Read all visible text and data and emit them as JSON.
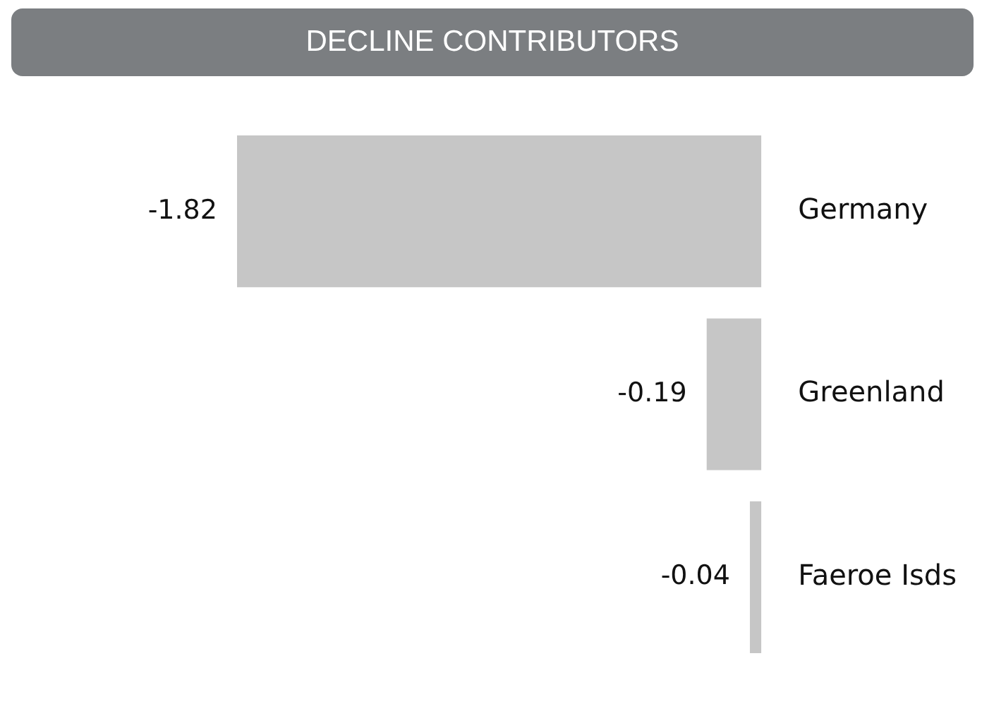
{
  "chart_data": {
    "type": "bar",
    "orientation": "horizontal",
    "title": "DECLINE CONTRIBUTORS",
    "categories": [
      "Germany",
      "Greenland",
      "Faeroe Isds"
    ],
    "values": [
      -1.82,
      -0.19,
      -0.04
    ],
    "color": "#c6c6c6",
    "data_labels": true,
    "grid": false,
    "legend": false
  }
}
